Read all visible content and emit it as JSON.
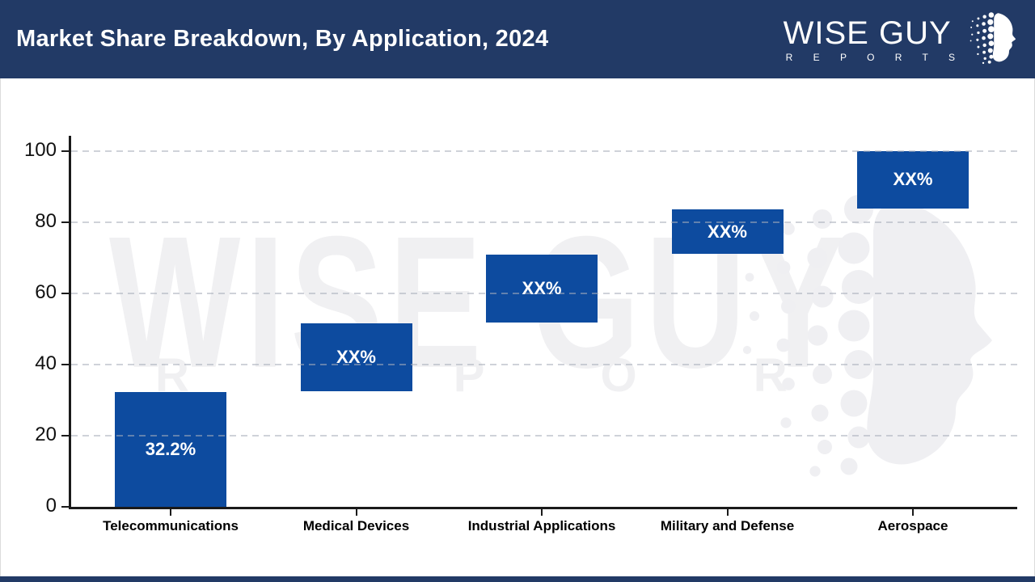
{
  "header": {
    "title": "Market Share Breakdown, By Application, 2024",
    "bg_color": "#223A66",
    "logo": {
      "line1": "WISE GUY",
      "line2": "R E P O R T S"
    }
  },
  "watermark": {
    "line1": "WISE GUY",
    "line2": "R E P O R T S"
  },
  "chart_data": {
    "type": "bar",
    "subtype": "waterfall",
    "title": "Market Share Breakdown, By Application, 2024",
    "categories": [
      "Telecommunications",
      "Medical Devices",
      "Industrial Applications",
      "Military and Defense",
      "Aerospace"
    ],
    "segments": [
      [
        0,
        32.2
      ],
      [
        32.5,
        51.6
      ],
      [
        51.8,
        70.9
      ],
      [
        71.1,
        83.6
      ],
      [
        83.9,
        100.0
      ]
    ],
    "bar_labels": [
      "32.2%",
      "XX%",
      "XX%",
      "XX%",
      "XX%"
    ],
    "ylabel": "",
    "xlabel": "",
    "ylim": [
      0,
      105
    ],
    "yticks": [
      0,
      20,
      40,
      60,
      80,
      100
    ],
    "grid": "horizontal-dashed",
    "legend": "none",
    "bar_color": "#0D4B9F",
    "bar_label_color": "#FFFFFF",
    "axis_color": "#1a1a1a"
  }
}
